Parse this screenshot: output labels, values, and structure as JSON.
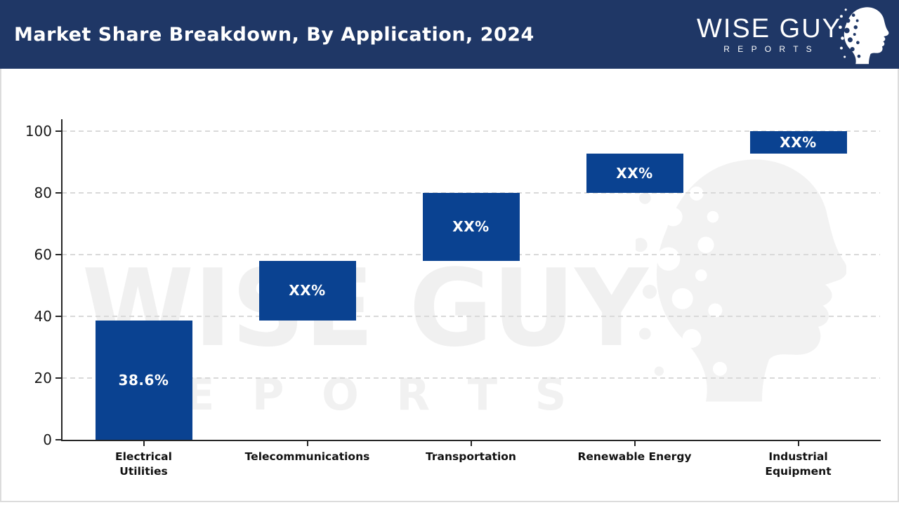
{
  "header": {
    "title": "Market Share Breakdown, By Application, 2024",
    "background_color": "#1f3766"
  },
  "logo": {
    "brand_line1": "WISE GUY",
    "brand_line2": "R E P O R T S"
  },
  "watermark": {
    "line1": "WISE GUY",
    "line2": "R E P O R T S"
  },
  "chart_data": {
    "type": "bar",
    "subtype": "waterfall",
    "title": "Market Share Breakdown, By Application, 2024",
    "categories": [
      "Electrical\nUtilities",
      "Telecommunications",
      "Transportation",
      "Renewable Energy",
      "Industrial\nEquipment"
    ],
    "segments": [
      {
        "category": "Electrical Utilities",
        "start": 0,
        "end": 38.6,
        "label": "38.6%"
      },
      {
        "category": "Telecommunications",
        "start": 38.6,
        "end": 58,
        "label": "XX%"
      },
      {
        "category": "Transportation",
        "start": 58,
        "end": 80,
        "label": "XX%"
      },
      {
        "category": "Renewable Energy",
        "start": 80,
        "end": 92.7,
        "label": "XX%"
      },
      {
        "category": "Industrial Equipment",
        "start": 92.7,
        "end": 100,
        "label": "XX%"
      }
    ],
    "yticks": [
      0,
      20,
      40,
      60,
      80,
      100
    ],
    "ylim": [
      0,
      104
    ],
    "xlabel": "",
    "ylabel": "",
    "bar_color": "#0a4291",
    "bar_label_color": "#ffffff",
    "axis_color": "#262626",
    "grid": true,
    "grid_style": "dashed",
    "legend": "none"
  }
}
